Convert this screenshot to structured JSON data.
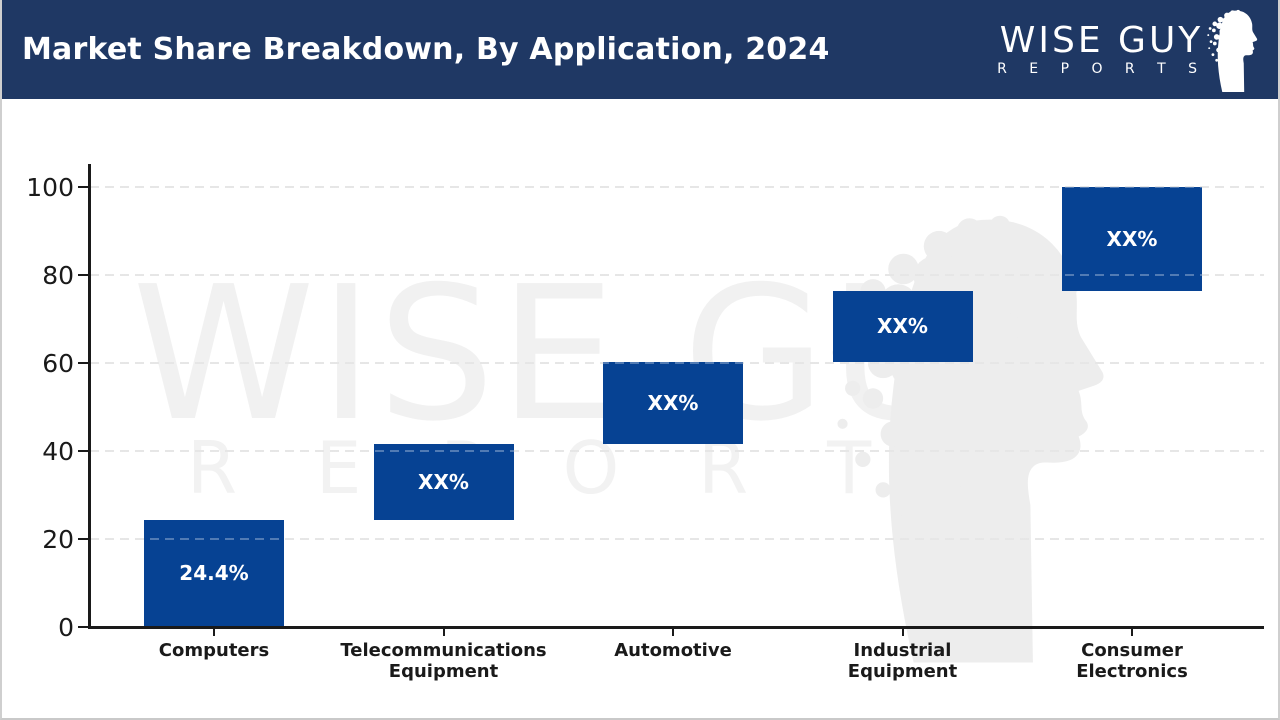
{
  "header": {
    "title": "Market Share Breakdown, By Application, 2024",
    "logo": {
      "line1": "WISE GUY",
      "line2": "R E P O R T S"
    }
  },
  "watermark": {
    "line1": "WISE GUY",
    "line2": "R E P O R T S"
  },
  "colors": {
    "header_bg": "#1f3864",
    "bar": "#064293",
    "bar_label": "#ffffff",
    "grid": "#dcdcdc",
    "axis": "#1a1a1a",
    "watermark": "#f0f0f0",
    "page_border": "#cfcfcf"
  },
  "chart_data": {
    "type": "bar",
    "subtype": "waterfall",
    "title": "Market Share Breakdown, By Application, 2024",
    "xlabel": "",
    "ylabel": "",
    "categories": [
      "Computers",
      "Telecommunications\nEquipment",
      "Automotive",
      "Industrial\nEquipment",
      "Consumer\nElectronics"
    ],
    "segments": [
      {
        "category": "Computers",
        "start": 0,
        "end": 24.4,
        "value": 24.4,
        "label": "24.4%"
      },
      {
        "category": "Telecommunications Equipment",
        "start": 24.4,
        "end": 41.5,
        "value": 17.1,
        "label": "XX%"
      },
      {
        "category": "Automotive",
        "start": 41.5,
        "end": 60.3,
        "value": 18.8,
        "label": "XX%"
      },
      {
        "category": "Industrial Equipment",
        "start": 60.3,
        "end": 76.3,
        "value": 16.0,
        "label": "XX%"
      },
      {
        "category": "Consumer Electronics",
        "start": 76.3,
        "end": 100,
        "value": 23.7,
        "label": "XX%"
      }
    ],
    "yticks": [
      0,
      20,
      40,
      60,
      80,
      100
    ],
    "ylim": [
      0,
      105
    ],
    "grid": true,
    "grid_style": "dashed",
    "legend": "none",
    "bar_color": "#064293"
  }
}
